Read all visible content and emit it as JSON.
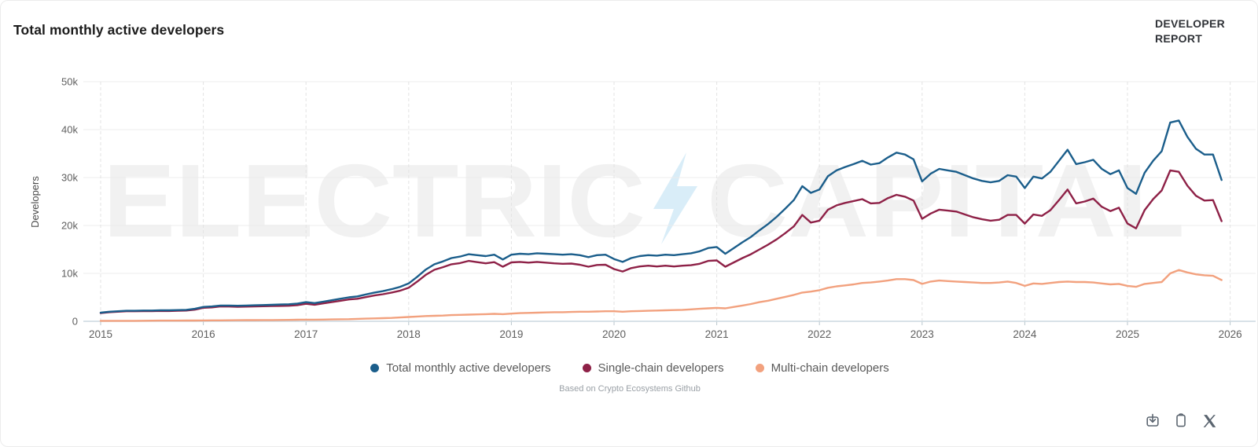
{
  "header": {
    "title": "Total monthly active developers",
    "brand_line1": "DEVELOPER",
    "brand_line2": "REPORT"
  },
  "watermark": {
    "left": "ELECTRIC",
    "right": "CAPITAL",
    "text_color": "#f1f1f1",
    "bolt_color": "#d9edf8"
  },
  "caption": "Based on Crypto Ecosystems Github",
  "chart_data": {
    "type": "line",
    "title": "Total monthly active developers",
    "xlabel": "",
    "ylabel": "Developers",
    "grid": true,
    "legend_position": "bottom",
    "x_tick_labels": [
      "2015",
      "2016",
      "2017",
      "2018",
      "2019",
      "2020",
      "2021",
      "2022",
      "2023",
      "2024",
      "2025",
      "2026"
    ],
    "x_range_years": [
      2015,
      2026
    ],
    "points_start": "2015-01",
    "points_end": "2025-12",
    "points_per_year": 12,
    "y_ticks_k": [
      0,
      10,
      20,
      30,
      40,
      50
    ],
    "y_tick_labels": [
      "0",
      "10k",
      "20k",
      "30k",
      "40k",
      "50k"
    ],
    "ylim_k": [
      0,
      50
    ],
    "unit": "thousands of developers (k)",
    "series": [
      {
        "name": "Total monthly active developers",
        "color": "#1b5e8b",
        "values_k": [
          1.8,
          2.0,
          2.1,
          2.2,
          2.2,
          2.25,
          2.25,
          2.3,
          2.3,
          2.35,
          2.4,
          2.6,
          3.0,
          3.1,
          3.3,
          3.3,
          3.25,
          3.3,
          3.35,
          3.4,
          3.45,
          3.5,
          3.55,
          3.7,
          4.0,
          3.8,
          4.1,
          4.4,
          4.7,
          5.0,
          5.2,
          5.6,
          6.0,
          6.3,
          6.7,
          7.2,
          7.9,
          9.3,
          10.8,
          11.9,
          12.5,
          13.2,
          13.5,
          14.0,
          13.8,
          13.6,
          13.9,
          12.9,
          13.9,
          14.1,
          14.0,
          14.2,
          14.1,
          14.0,
          13.9,
          14.0,
          13.8,
          13.4,
          13.8,
          13.9,
          13.0,
          12.4,
          13.2,
          13.6,
          13.8,
          13.7,
          13.9,
          13.8,
          14.0,
          14.2,
          14.6,
          15.3,
          15.5,
          14.1,
          15.3,
          16.5,
          17.6,
          19.0,
          20.3,
          21.8,
          23.5,
          25.3,
          28.2,
          26.8,
          27.5,
          30.3,
          31.5,
          32.2,
          32.8,
          33.5,
          32.7,
          33.0,
          34.2,
          35.2,
          34.8,
          33.8,
          29.2,
          30.8,
          31.8,
          31.5,
          31.2,
          30.5,
          29.8,
          29.3,
          29.0,
          29.3,
          30.5,
          30.2,
          27.8,
          30.2,
          29.8,
          31.2,
          33.5,
          35.8,
          32.8,
          33.2,
          33.7,
          31.8,
          30.7,
          31.5,
          27.8,
          26.6,
          31.0,
          33.5,
          35.5,
          41.5,
          41.9,
          38.5,
          36.0,
          34.8,
          34.8,
          29.5
        ]
      },
      {
        "name": "Single-chain developers",
        "color": "#8e2147",
        "values_k": [
          1.7,
          1.9,
          2.0,
          2.1,
          2.1,
          2.13,
          2.12,
          2.16,
          2.15,
          2.2,
          2.24,
          2.43,
          2.82,
          2.9,
          3.1,
          3.08,
          3.02,
          3.06,
          3.1,
          3.14,
          3.18,
          3.22,
          3.25,
          3.38,
          3.65,
          3.46,
          3.74,
          4.0,
          4.28,
          4.55,
          4.7,
          5.05,
          5.4,
          5.65,
          6.0,
          6.4,
          7.0,
          8.3,
          9.7,
          10.75,
          11.3,
          11.9,
          12.15,
          12.6,
          12.35,
          12.1,
          12.35,
          11.4,
          12.3,
          12.4,
          12.25,
          12.4,
          12.25,
          12.1,
          12.0,
          12.05,
          11.8,
          11.4,
          11.75,
          11.8,
          10.9,
          10.4,
          11.1,
          11.45,
          11.6,
          11.45,
          11.6,
          11.45,
          11.6,
          11.7,
          12.0,
          12.6,
          12.7,
          11.4,
          12.3,
          13.2,
          14.0,
          15.0,
          16.0,
          17.1,
          18.4,
          19.8,
          22.2,
          20.6,
          21.0,
          23.3,
          24.2,
          24.7,
          25.1,
          25.5,
          24.6,
          24.7,
          25.7,
          26.4,
          26.0,
          25.2,
          21.4,
          22.5,
          23.3,
          23.1,
          22.9,
          22.3,
          21.7,
          21.3,
          21.0,
          21.2,
          22.2,
          22.2,
          20.4,
          22.3,
          22.0,
          23.2,
          25.3,
          27.5,
          24.6,
          25.0,
          25.6,
          23.9,
          23.0,
          23.7,
          20.4,
          19.4,
          23.2,
          25.5,
          27.3,
          31.5,
          31.2,
          28.3,
          26.2,
          25.2,
          25.3,
          20.9
        ]
      },
      {
        "name": "Multi-chain developers",
        "color": "#f2a17e",
        "values_k": [
          0.1,
          0.1,
          0.1,
          0.1,
          0.1,
          0.12,
          0.13,
          0.14,
          0.15,
          0.15,
          0.16,
          0.17,
          0.18,
          0.2,
          0.2,
          0.22,
          0.23,
          0.24,
          0.25,
          0.26,
          0.27,
          0.28,
          0.3,
          0.32,
          0.35,
          0.34,
          0.36,
          0.4,
          0.42,
          0.45,
          0.5,
          0.55,
          0.6,
          0.65,
          0.7,
          0.8,
          0.9,
          1.0,
          1.1,
          1.15,
          1.2,
          1.3,
          1.35,
          1.4,
          1.45,
          1.5,
          1.55,
          1.5,
          1.6,
          1.7,
          1.75,
          1.8,
          1.85,
          1.9,
          1.9,
          1.95,
          2.0,
          2.0,
          2.05,
          2.1,
          2.1,
          2.0,
          2.1,
          2.15,
          2.2,
          2.25,
          2.3,
          2.35,
          2.4,
          2.5,
          2.6,
          2.7,
          2.8,
          2.7,
          3.0,
          3.3,
          3.6,
          4.0,
          4.3,
          4.7,
          5.1,
          5.5,
          6.0,
          6.2,
          6.5,
          7.0,
          7.3,
          7.5,
          7.7,
          8.0,
          8.1,
          8.3,
          8.5,
          8.8,
          8.8,
          8.6,
          7.8,
          8.3,
          8.5,
          8.4,
          8.3,
          8.2,
          8.1,
          8.0,
          8.0,
          8.1,
          8.3,
          8.0,
          7.4,
          7.9,
          7.8,
          8.0,
          8.2,
          8.3,
          8.2,
          8.2,
          8.1,
          7.9,
          7.7,
          7.8,
          7.4,
          7.2,
          7.8,
          8.0,
          8.2,
          10.0,
          10.7,
          10.2,
          9.8,
          9.6,
          9.5,
          8.6
        ]
      }
    ]
  },
  "footer_icons": [
    {
      "name": "download-icon",
      "action": "download"
    },
    {
      "name": "copy-icon",
      "action": "copy"
    },
    {
      "name": "x-icon",
      "action": "share-x"
    }
  ]
}
